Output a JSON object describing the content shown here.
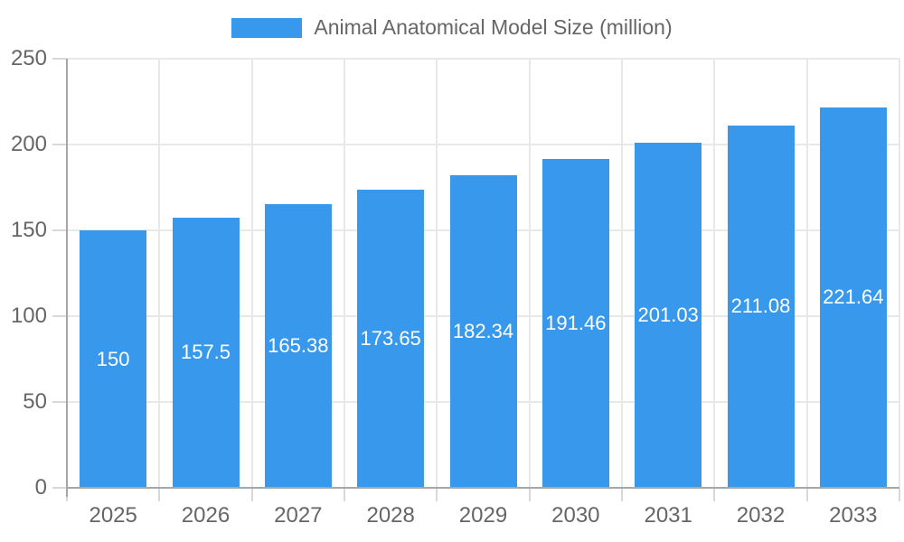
{
  "chart_data": {
    "type": "bar",
    "title": "Animal Anatomical Model Size (million)",
    "categories": [
      "2025",
      "2026",
      "2027",
      "2028",
      "2029",
      "2030",
      "2031",
      "2032",
      "2033"
    ],
    "values": [
      150,
      157.5,
      165.38,
      173.65,
      182.34,
      191.46,
      201.03,
      211.08,
      221.64
    ],
    "xlabel": "",
    "ylabel": "",
    "ylim": [
      0,
      250
    ],
    "yticks": [
      0,
      50,
      100,
      150,
      200,
      250
    ],
    "grid": true,
    "legend_position": "top",
    "value_labels": "inside-center",
    "colors": {
      "bar": "#3899EC",
      "value_label_text": "#FFFFFF",
      "axis_text": "#666666",
      "grid_line": "#E8E8E8",
      "axis_line": "#A6A6A6",
      "background": "#FFFFFF"
    }
  }
}
